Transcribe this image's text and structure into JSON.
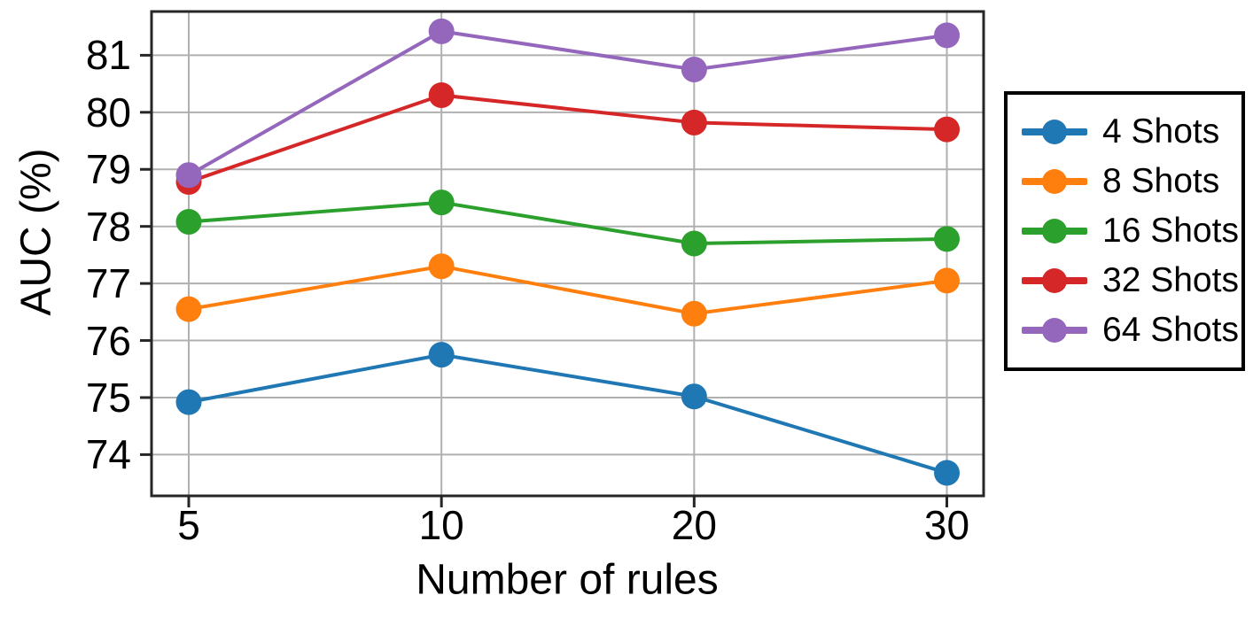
{
  "chart_data": {
    "type": "line",
    "title": "",
    "xlabel": "Number of rules",
    "ylabel": "AUC (%)",
    "categories": [
      5,
      10,
      20,
      30
    ],
    "x_tick_labels": [
      "5",
      "10",
      "20",
      "30"
    ],
    "y_ticks": [
      74,
      75,
      76,
      77,
      78,
      79,
      80,
      81
    ],
    "ylim": [
      73.3,
      81.8
    ],
    "grid": true,
    "legend_position": "outside-right",
    "series": [
      {
        "name": "4 Shots",
        "color": "#1f77b4",
        "values": [
          74.92,
          75.75,
          75.02,
          73.68
        ]
      },
      {
        "name": "8 Shots",
        "color": "#ff7f0e",
        "values": [
          76.55,
          77.3,
          76.47,
          77.05
        ]
      },
      {
        "name": "16 Shots",
        "color": "#2ca02c",
        "values": [
          78.08,
          78.42,
          77.7,
          77.78
        ]
      },
      {
        "name": "32 Shots",
        "color": "#d62728",
        "values": [
          78.78,
          80.3,
          79.82,
          79.7
        ]
      },
      {
        "name": "64 Shots",
        "color": "#9467bd",
        "values": [
          78.9,
          81.42,
          80.75,
          81.35
        ]
      }
    ],
    "colors": {
      "grid": "#b0b0b0",
      "frame": "#262626",
      "text": "#000000",
      "background": "#ffffff"
    }
  }
}
